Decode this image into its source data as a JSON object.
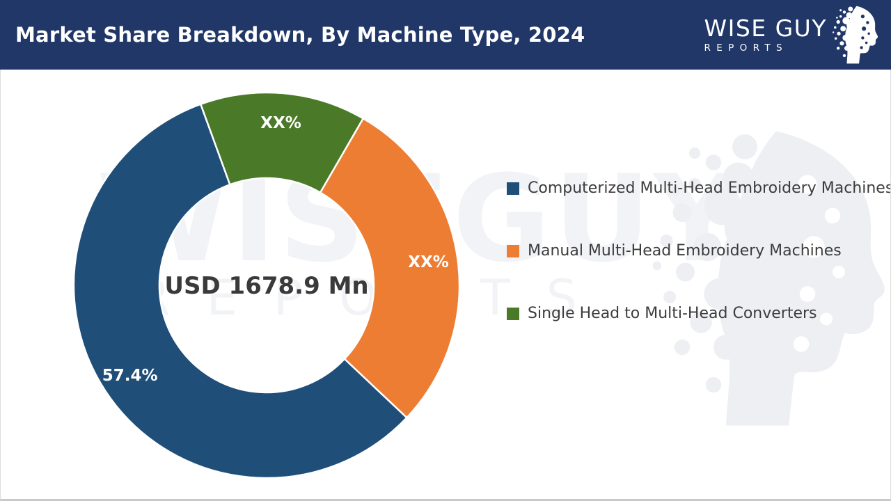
{
  "header": {
    "title": "Market Share Breakdown, By Machine Type, 2024",
    "logo": {
      "brand_line1": "WISE GUY",
      "brand_line2": "REPORTS"
    }
  },
  "chart_data": {
    "type": "pie",
    "subtype": "donut",
    "title": "Market Share Breakdown, By Machine Type, 2024",
    "center_label": "USD 1678.9 Mn",
    "start_angle_deg": 110,
    "direction": "counterclockwise",
    "legend_position": "right",
    "series": [
      {
        "name": "Computerized Multi-Head Embroidery Machines",
        "display_value": "57.4%",
        "value_pct": 57.4,
        "color": "#1F4E79"
      },
      {
        "name": "Manual Multi-Head Embroidery Machines",
        "display_value": "XX%",
        "value_pct": 28.7,
        "color": "#EC7D33"
      },
      {
        "name": "Single Head to Multi-Head Converters",
        "display_value": "XX%",
        "value_pct": 13.9,
        "color": "#4A7A28"
      }
    ]
  },
  "watermark": {
    "line1": "WISEGUY",
    "line2": "REPORTS"
  }
}
